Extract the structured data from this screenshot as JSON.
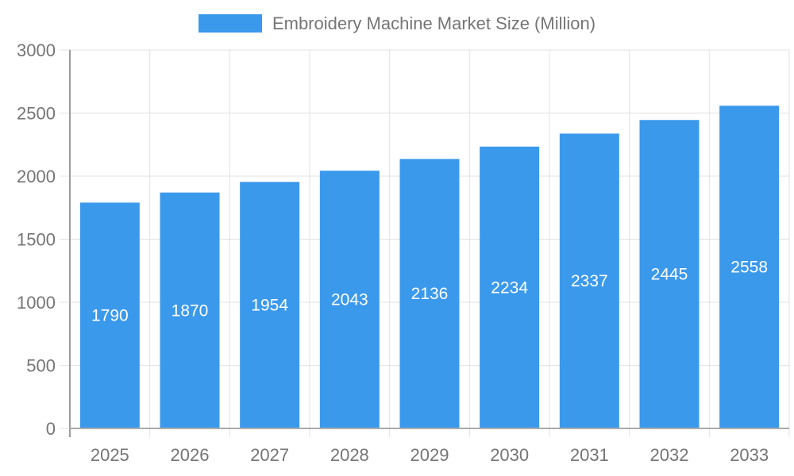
{
  "legend": {
    "label": "Embroidery Machine Market Size (Million)"
  },
  "colors": {
    "bar": "#3B99EC",
    "grid": "#E2E2E2",
    "axis_y": "#9C9C9C",
    "axis_x": "#ABABAB",
    "text": "#757575",
    "bar_label": "#FFFFFF"
  },
  "chart_data": {
    "type": "bar",
    "title": "Embroidery Machine Market Size (Million)",
    "categories": [
      "2025",
      "2026",
      "2027",
      "2028",
      "2029",
      "2030",
      "2031",
      "2032",
      "2033"
    ],
    "values": [
      1790,
      1870,
      1954,
      2043,
      2136,
      2234,
      2337,
      2445,
      2558
    ],
    "xlabel": "",
    "ylabel": "",
    "ylim": [
      0,
      3000
    ],
    "ytick_step": 500,
    "yticks": [
      "0",
      "500",
      "1000",
      "1500",
      "2000",
      "2500",
      "3000"
    ],
    "grid": true,
    "legend_position": "top",
    "value_labels": "inside-center"
  }
}
